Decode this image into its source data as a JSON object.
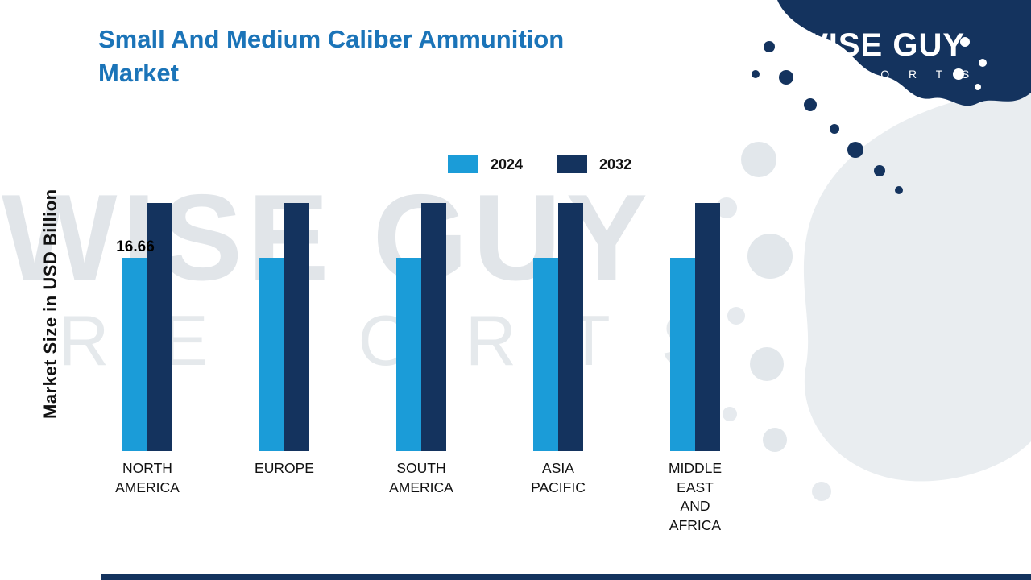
{
  "page": {
    "title": "Small And Medium Caliber Ammunition Market",
    "title_display": "Small And Medium Caliber Ammunition\nMarket"
  },
  "logo": {
    "name": "WISE GUY",
    "tagline": "R E P O R T S"
  },
  "watermark": {
    "line1": "WISE GUY",
    "line2": "R E P O R T S"
  },
  "chart_data": {
    "type": "bar",
    "title": "Small And Medium Caliber Ammunition Market",
    "ylabel": "Market Size in USD Billion",
    "categories": [
      "NORTH AMERICA",
      "EUROPE",
      "SOUTH AMERICA",
      "ASIA PACIFIC",
      "MIDDLE EAST AND AFRICA"
    ],
    "categories_display": [
      "NORTH\nAMERICA",
      "EUROPE",
      "SOUTH\nAMERICA",
      "ASIA\nPACIFIC",
      "MIDDLE\nEAST\nAND\nAFRICA"
    ],
    "series": [
      {
        "name": "2024",
        "color": "#1b9cd8",
        "values": [
          16.66,
          16.66,
          16.66,
          16.66,
          16.66
        ]
      },
      {
        "name": "2032",
        "color": "#14335e",
        "values": [
          21.4,
          21.4,
          21.4,
          21.4,
          21.4
        ]
      }
    ],
    "annotations": [
      {
        "category_index": 0,
        "series_index": 0,
        "text": "16.66"
      }
    ],
    "ylim": [
      0,
      21.4
    ],
    "grid": false,
    "legend_position": "top"
  },
  "colors": {
    "title": "#1b74b8",
    "bar_2024": "#1b9cd8",
    "bar_2032": "#14335e",
    "accent_navy": "#14335e",
    "watermark_gray": "#a3afbc"
  }
}
